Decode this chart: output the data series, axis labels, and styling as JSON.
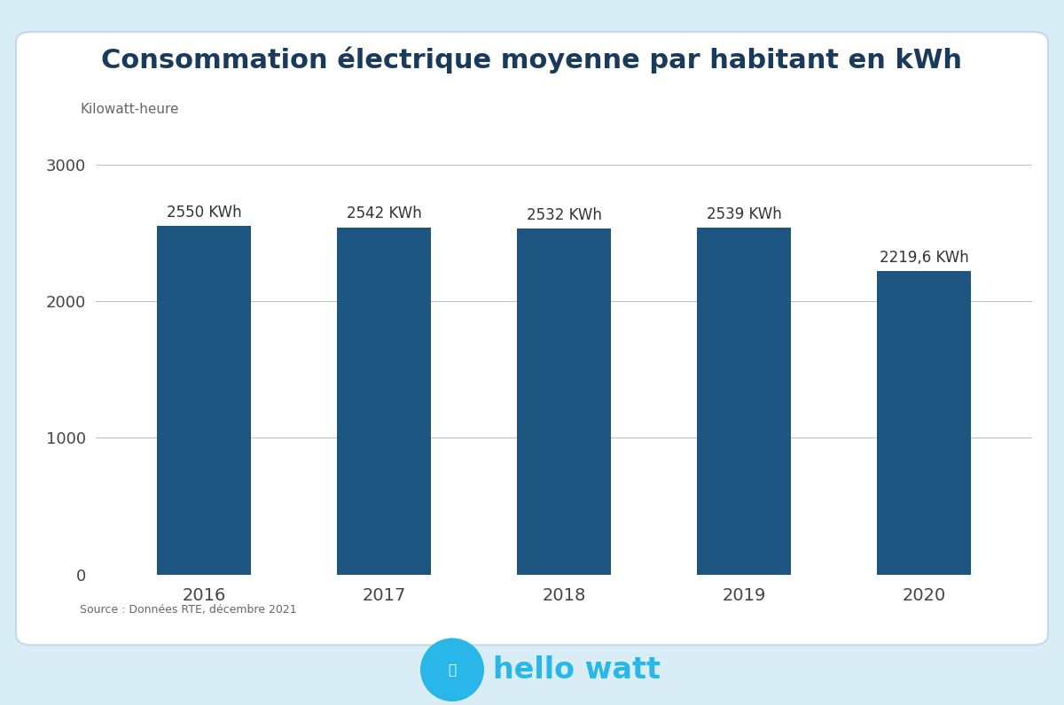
{
  "title": "Consommation électrique moyenne par habitant en kWh",
  "ylabel": "Kilowatt-heure",
  "source": "Source : Données RTE, décembre 2021",
  "categories": [
    "2016",
    "2017",
    "2018",
    "2019",
    "2020"
  ],
  "values": [
    2550,
    2542,
    2532,
    2539,
    2219.6
  ],
  "bar_labels": [
    "2550 KWh",
    "2542 KWh",
    "2532 KWh",
    "2539 KWh",
    "2219,6 KWh"
  ],
  "bar_color": "#1b5580",
  "background_outer": "#d9edf7",
  "background_chart": "#ffffff",
  "title_color": "#1a3a5c",
  "ylabel_color": "#666666",
  "yticks": [
    0,
    1000,
    2000,
    3000
  ],
  "ylim": [
    0,
    3250
  ],
  "grid_color": "#bbbbbb",
  "tick_label_color": "#444444",
  "source_color": "#666666",
  "bar_label_color": "#333333",
  "footer_text": "hello watt",
  "footer_color": "#29b6e8",
  "footer_bg": "#d9edf7"
}
